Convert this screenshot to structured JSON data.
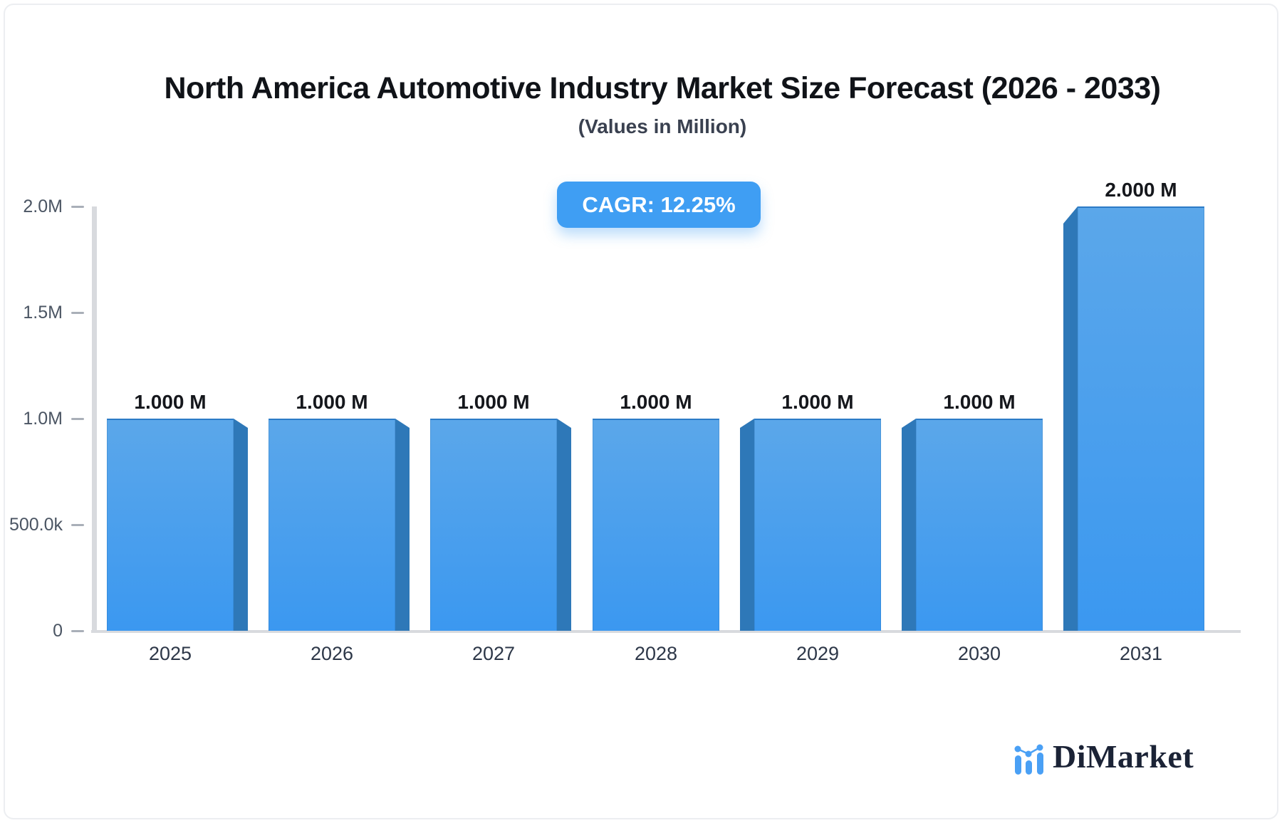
{
  "title": "North America Automotive Industry Market Size Forecast (2026 - 2033)",
  "subtitle": "(Values in Million)",
  "cagr_badge": "CAGR: 12.25%",
  "chart_data": {
    "type": "bar",
    "categories": [
      "2025",
      "2026",
      "2027",
      "2028",
      "2029",
      "2030",
      "2031"
    ],
    "values": [
      1.0,
      1.0,
      1.0,
      1.0,
      1.0,
      1.0,
      2.0
    ],
    "unit": "Million",
    "data_labels": [
      "1.000 M",
      "1.000 M",
      "1.000 M",
      "1.000 M",
      "1.000 M",
      "1.000 M",
      "2.000 M"
    ],
    "y_ticks": [
      "2.0M",
      "1.5M",
      "1.0M",
      "500.0k",
      "0"
    ],
    "y_tick_values": [
      2000000,
      1500000,
      1000000,
      500000,
      0
    ],
    "ylim": [
      0,
      2000000
    ],
    "grid": false,
    "legend": false,
    "bar_style": "3d-perspective"
  },
  "logo": {
    "text": "DiMarket",
    "icon": "bar-line-chart-icon"
  },
  "colors": {
    "bar_top": "#5BA7EA",
    "bar_bottom": "#3B98F0",
    "bar_side": "#2E78B8",
    "badge_bg": "#3F9EF3",
    "badge_text": "#FFFFFF",
    "axis_line": "#D8DADE",
    "tick": "#A9AFB8",
    "title": "#101318",
    "subtitle": "#3A4150",
    "y_label": "#4B5563",
    "x_label": "#2D3748",
    "value_label": "#15171C",
    "logo_text": "#1B2336",
    "logo_blue": "#4AA0F5",
    "card_border": "#ECEEF1"
  }
}
